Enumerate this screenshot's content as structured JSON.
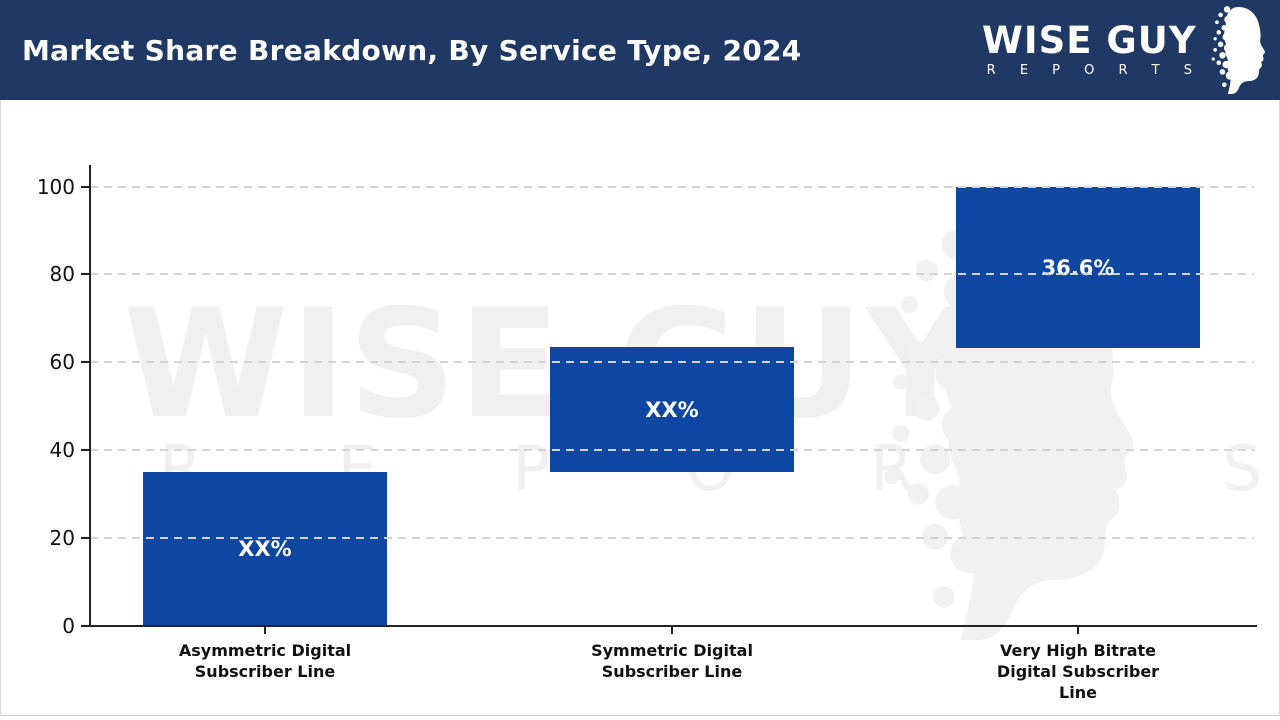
{
  "header": {
    "title": "Market Share Breakdown, By Service Type, 2024",
    "logo": {
      "line1": "WISE GUY",
      "line2": "R E P O R T S"
    }
  },
  "watermark": {
    "text1": "WISE GUY",
    "text2": "R E P O R T S"
  },
  "chart_data": {
    "type": "bar",
    "subtype": "waterfall",
    "title": "Market Share Breakdown, By Service Type, 2024",
    "categories": [
      "Asymmetric Digital\nSubscriber Line",
      "Symmetric Digital\nSubscriber Line",
      "Very High Bitrate\nDigital Subscriber\nLine"
    ],
    "bars": [
      {
        "start": 0,
        "end": 35,
        "value": 35,
        "label": "XX%"
      },
      {
        "start": 35,
        "end": 63.4,
        "value": 28.4,
        "label": "XX%"
      },
      {
        "start": 63.4,
        "end": 100,
        "value": 36.6,
        "label": "36.6%"
      }
    ],
    "yticks": [
      0,
      20,
      40,
      60,
      80,
      100
    ],
    "ylim": [
      0,
      100
    ],
    "xlabel": "",
    "ylabel": "",
    "grid": "horizontal-dashed",
    "legend": "none",
    "colors": {
      "bar": "#0d47a1",
      "grid": "#d4d4d4",
      "axis": "#222222",
      "header_bg": "#1f3864",
      "bar_label_text": "#ffffff",
      "watermark": "#f0f0f0"
    }
  }
}
